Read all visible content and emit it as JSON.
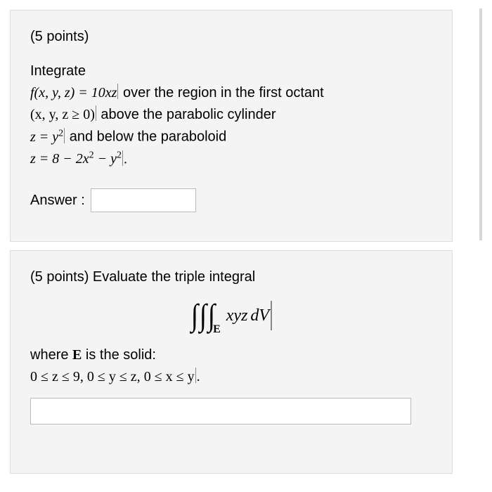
{
  "colors": {
    "card_bg": "#f4f4f4",
    "card_border": "#dcdcdc",
    "input_bg": "#ffffff",
    "input_border": "#bbbbbb",
    "divider": "#d6d6d6",
    "text": "#000000",
    "cursor": "#888888"
  },
  "typography": {
    "body_font": "Arial",
    "math_font": "Times New Roman",
    "body_size_pt": 15,
    "integral_size_pt": 33
  },
  "q1": {
    "points": "(5 points)",
    "lead": "Integrate",
    "func_lhs": "f(x, y, z) = 10xz",
    "text_after_func": " over the region in the first octant",
    "octant": "(x, y, z ≥ 0)",
    "text_after_octant": " above the parabolic cylinder",
    "surf1": "z = y",
    "surf1_sup": "2",
    "text_after_surf1": " and below the paraboloid",
    "surf2_a": "z = 8 − 2x",
    "surf2_sup1": "2",
    "surf2_b": " − y",
    "surf2_sup2": "2",
    "surf2_end": ".",
    "answer_label": "Answer :",
    "answer_value": ""
  },
  "q2": {
    "points": "(5 points) Evaluate the triple integral",
    "integral": {
      "type": "triple_integral",
      "region_label": "E",
      "integrand": "xyz",
      "differential": "dV"
    },
    "where_text": "where ",
    "E_bold": "E",
    "solid_text": " is the solid:",
    "bounds_a": "0 ≤ z ≤ 9, ",
    "bounds_b": " 0 ≤ y ≤ z, ",
    "bounds_c": " 0 ≤ x ≤ y",
    "bounds_end": ".",
    "answer_value": ""
  }
}
